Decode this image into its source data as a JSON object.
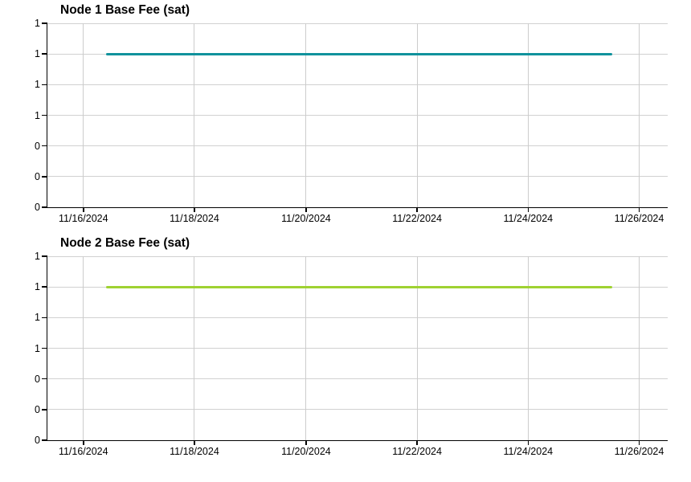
{
  "page": {
    "background": "#ffffff",
    "axis_color": "#000000",
    "grid_color": "#d1d1d1",
    "text_color": "#000000"
  },
  "chart_data": [
    {
      "type": "line",
      "title": "Node 1 Base Fee (sat)",
      "xlabel": "",
      "ylabel": "",
      "x_tick_labels": [
        "11/16/2024",
        "11/18/2024",
        "11/20/2024",
        "11/22/2024",
        "11/24/2024",
        "11/26/2024"
      ],
      "y_tick_labels": [
        "1",
        "1",
        "1",
        "1",
        "0",
        "0",
        "0"
      ],
      "ylim": [
        0,
        1.2
      ],
      "y_tick_step": 0.2,
      "grid": true,
      "legend_position": "none",
      "series": [
        {
          "name": "Node 1 Base Fee",
          "color": "#10929c",
          "constant_value": 1,
          "x_start": "11/16/2024",
          "x_end": "11/25/2024"
        }
      ],
      "layout": {
        "x_tick_pct": [
          5.8,
          23.7,
          41.7,
          59.6,
          77.5,
          95.4
        ],
        "line_start_pct": 9.4,
        "line_end_pct": 91.0,
        "line_value_tick_index": 1
      }
    },
    {
      "type": "line",
      "title": "Node 2 Base Fee (sat)",
      "xlabel": "",
      "ylabel": "",
      "x_tick_labels": [
        "11/16/2024",
        "11/18/2024",
        "11/20/2024",
        "11/22/2024",
        "11/24/2024",
        "11/26/2024"
      ],
      "y_tick_labels": [
        "1",
        "1",
        "1",
        "1",
        "0",
        "0",
        "0"
      ],
      "ylim": [
        0,
        1.2
      ],
      "y_tick_step": 0.2,
      "grid": true,
      "legend_position": "none",
      "series": [
        {
          "name": "Node 2 Base Fee",
          "color": "#9fd232",
          "constant_value": 1,
          "x_start": "11/16/2024",
          "x_end": "11/25/2024"
        }
      ],
      "layout": {
        "x_tick_pct": [
          5.8,
          23.7,
          41.7,
          59.6,
          77.5,
          95.4
        ],
        "line_start_pct": 9.4,
        "line_end_pct": 91.0,
        "line_value_tick_index": 1
      }
    }
  ]
}
